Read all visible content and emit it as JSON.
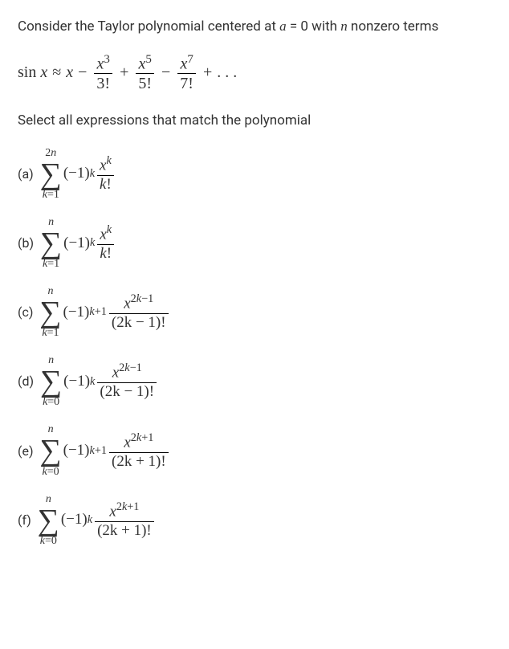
{
  "intro_part1": "Consider the Taylor polynomial centered at ",
  "intro_a": "a",
  "intro_eq": " = 0",
  "intro_part2": " with ",
  "intro_n": "n",
  "intro_part3": " nonzero terms",
  "lhs": "sin",
  "x": "x",
  "approx": "≈",
  "minus": "−",
  "plus": "+",
  "dots": ". . .",
  "f1_num_exp": "3",
  "f1_den": "3!",
  "f2_num_exp": "5",
  "f2_den": "5!",
  "f3_num_exp": "7",
  "f3_den": "7!",
  "prompt": "Select all expressions that match the polynomial",
  "opt_a": "(a)",
  "opt_b": "(b)",
  "opt_c": "(c)",
  "opt_d": "(d)",
  "opt_e": "(e)",
  "opt_f": "(f)",
  "sum_upper_2n": "2n",
  "sum_upper_n": "n",
  "sum_lower_k1": "k=1",
  "sum_lower_k0": "k=0",
  "neg1": "(−1)",
  "exp_k": "k",
  "exp_kplus1": "k+1",
  "frac_xk_num_base": "x",
  "frac_xk_num_exp": "k",
  "frac_xk_den": "k!",
  "frac_2km1_num_exp": "2k−1",
  "frac_2km1_den": "(2k − 1)!",
  "frac_2kp1_num_exp": "2k+1",
  "frac_2kp1_den": "(2k + 1)!"
}
